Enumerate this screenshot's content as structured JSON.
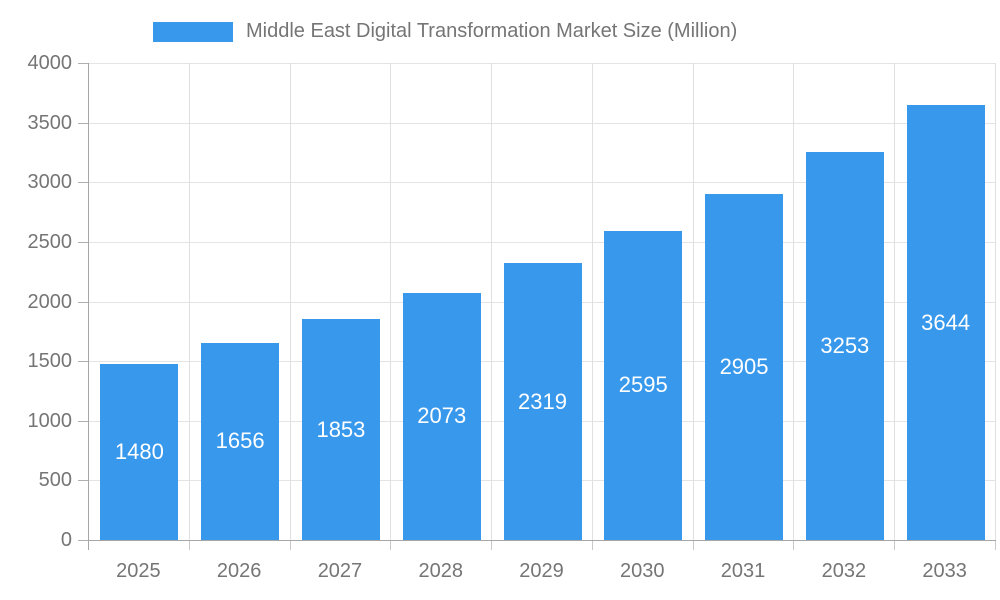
{
  "legend": {
    "label": "Middle East Digital Transformation Market Size (Million)"
  },
  "chart_data": {
    "type": "bar",
    "title": "Middle East Digital Transformation Market Size (Million)",
    "categories": [
      "2025",
      "2026",
      "2027",
      "2028",
      "2029",
      "2030",
      "2031",
      "2032",
      "2033"
    ],
    "values": [
      1480,
      1656,
      1853,
      2073,
      2319,
      2595,
      2905,
      3253,
      3644
    ],
    "xlabel": "",
    "ylabel": "",
    "ylim": [
      0,
      4000
    ],
    "ytick_step": 500,
    "grid": "on",
    "legend_position": "top",
    "bar_labels": [
      "1480",
      "1656",
      "1853",
      "2073",
      "2319",
      "2595",
      "2905",
      "3253",
      "3644"
    ],
    "ytick_labels": [
      "0",
      "500",
      "1000",
      "1500",
      "2000",
      "2500",
      "3000",
      "3500",
      "4000"
    ]
  },
  "colors": {
    "bar": "#3898ec",
    "bar_label_text": "#ffffff",
    "axis_text": "#757575",
    "legend_text": "#757575",
    "gridline": "#e4e4e4",
    "axis_line": "#a6a6a6",
    "background": "#ffffff"
  }
}
